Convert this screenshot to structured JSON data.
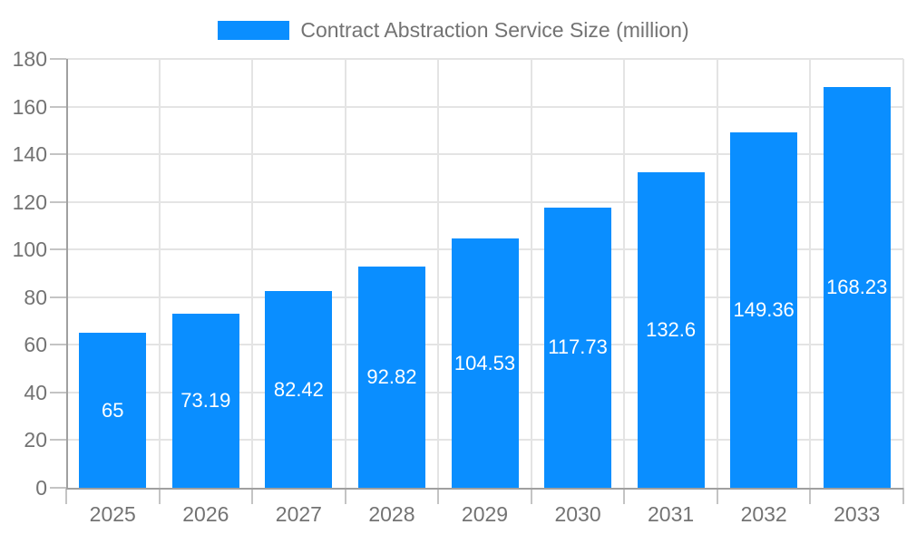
{
  "legend": {
    "label": "Contract Abstraction Service Size (million)"
  },
  "colors": {
    "bar": "#0a8eff",
    "bar_label_text": "#ffffff",
    "axis_text": "#737373",
    "legend_text": "#737373",
    "axis_line": "#a0a0a0",
    "grid_line": "#e4e4e4",
    "tick_line": "#c4c4c4",
    "background": "#ffffff"
  },
  "chart_data": {
    "type": "bar",
    "title": "Contract Abstraction Service Size (million)",
    "categories": [
      "2025",
      "2026",
      "2027",
      "2028",
      "2029",
      "2030",
      "2031",
      "2032",
      "2033"
    ],
    "values": [
      65,
      73.19,
      82.42,
      92.82,
      104.53,
      117.73,
      132.6,
      149.36,
      168.23
    ],
    "value_labels": [
      "65",
      "73.19",
      "82.42",
      "92.82",
      "104.53",
      "117.73",
      "132.6",
      "149.36",
      "168.23"
    ],
    "xlabel": "",
    "ylabel": "",
    "ylim": [
      0,
      180
    ],
    "y_ticks": [
      0,
      20,
      40,
      60,
      80,
      100,
      120,
      140,
      160,
      180
    ],
    "grid": true,
    "legend_position": "top",
    "value_label_position": "inside-center"
  }
}
